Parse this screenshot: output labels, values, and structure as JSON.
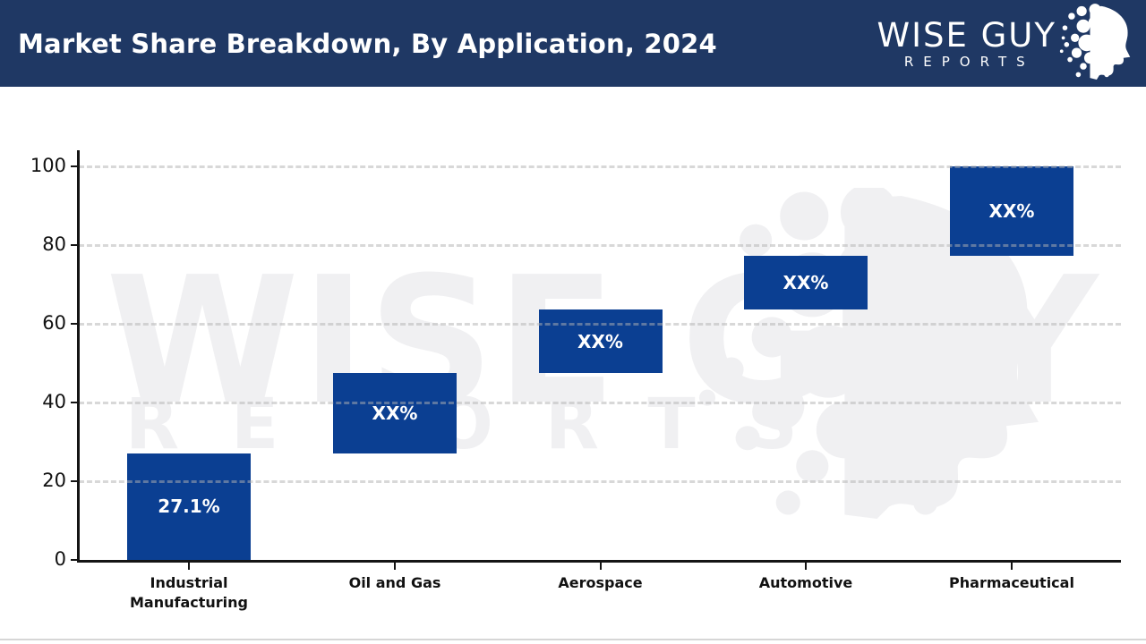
{
  "header": {
    "title": "Market Share Breakdown, By Application, 2024",
    "bg_color": "#1f3864",
    "logo": {
      "line1": "WISE GUY",
      "line2": "REPORTS"
    }
  },
  "watermark": {
    "line1": "WISE GUY",
    "line2": "REPORTS"
  },
  "chart_data": {
    "type": "bar",
    "subtype": "waterfall",
    "title": "Market Share Breakdown, By Application, 2024",
    "xlabel": "",
    "ylabel": "",
    "ylim": [
      0,
      100
    ],
    "yticks": [
      0,
      20,
      40,
      60,
      80,
      100
    ],
    "grid": "horizontal-dashed",
    "legend": "none",
    "bar_color": "#0b3f92",
    "grid_color": "#e0e0e0",
    "axis_color": "#141414",
    "categories": [
      "Industrial\nManufacturing",
      "Oil and Gas",
      "Aerospace",
      "Automotive",
      "Pharmaceutical"
    ],
    "segments": [
      {
        "category": "Industrial Manufacturing",
        "start": 0,
        "end": 27.1,
        "value": 27.1,
        "value_label": "27.1%"
      },
      {
        "category": "Oil and Gas",
        "start": 27.1,
        "end": 47.4,
        "value": 20.3,
        "value_label": "XX%"
      },
      {
        "category": "Aerospace",
        "start": 47.4,
        "end": 63.6,
        "value": 16.2,
        "value_label": "XX%"
      },
      {
        "category": "Automotive",
        "start": 63.6,
        "end": 77.3,
        "value": 13.7,
        "value_label": "XX%"
      },
      {
        "category": "Pharmaceutical",
        "start": 77.3,
        "end": 100,
        "value": 22.7,
        "value_label": "XX%"
      }
    ]
  }
}
